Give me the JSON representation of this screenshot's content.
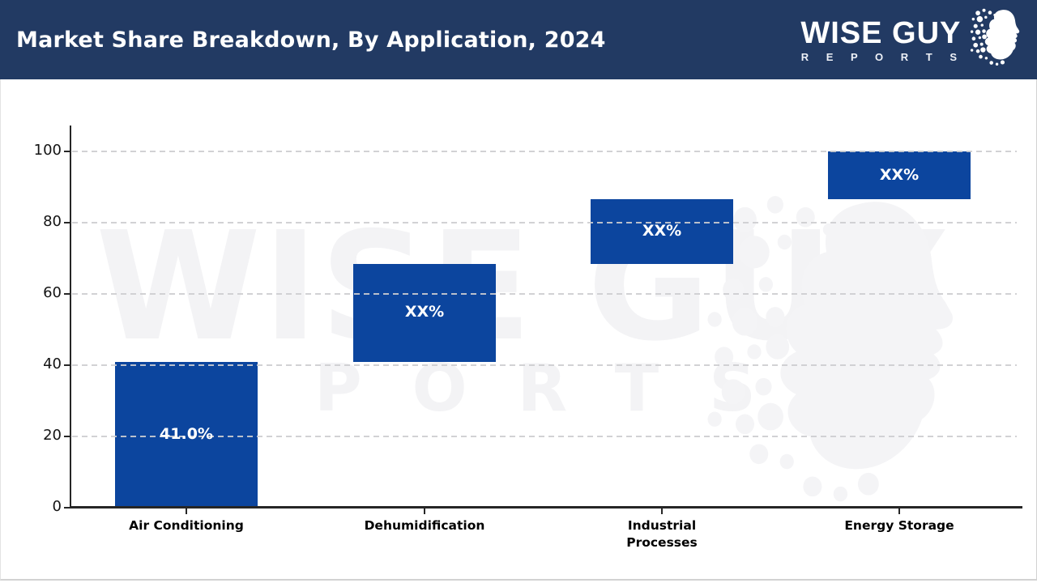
{
  "header": {
    "title": "Market Share Breakdown, By Application, 2024",
    "bg_color": "#223a63",
    "logo": {
      "word": "WISE GUY",
      "sub": "R E P O R T S"
    }
  },
  "watermark": {
    "big": "WISE GUY",
    "small": "PORTS"
  },
  "chart_data": {
    "type": "bar",
    "variant": "waterfall-cumulative",
    "title": "Market Share Breakdown, By Application, 2024",
    "categories": [
      "Air Conditioning",
      "Dehumidification",
      "Industrial\nProcesses",
      "Energy Storage"
    ],
    "series": [
      {
        "name": "Market Share (%)",
        "values": [
          41.0,
          27.5,
          18.0,
          13.5
        ],
        "cumulative_segments": [
          [
            0,
            41.0
          ],
          [
            41.0,
            68.5
          ],
          [
            68.5,
            86.5
          ],
          [
            86.5,
            100.0
          ]
        ],
        "bar_labels": [
          "41.0%",
          "XX%",
          "XX%",
          "XX%"
        ]
      }
    ],
    "xlabel": "",
    "ylabel": "",
    "ylim": [
      0,
      107
    ],
    "yticks": [
      0,
      20,
      40,
      60,
      80,
      100
    ],
    "yticklabels": [
      "0",
      "20",
      "40",
      "60",
      "80",
      "100"
    ],
    "grid": {
      "axis": "y",
      "style": "dashed",
      "color": "#d9d9d9",
      "drawn_above_bars": true
    },
    "legend": "none",
    "bar_color": "#0c459e",
    "bar_label_color": "#ffffff",
    "axis_color": "#262626"
  }
}
